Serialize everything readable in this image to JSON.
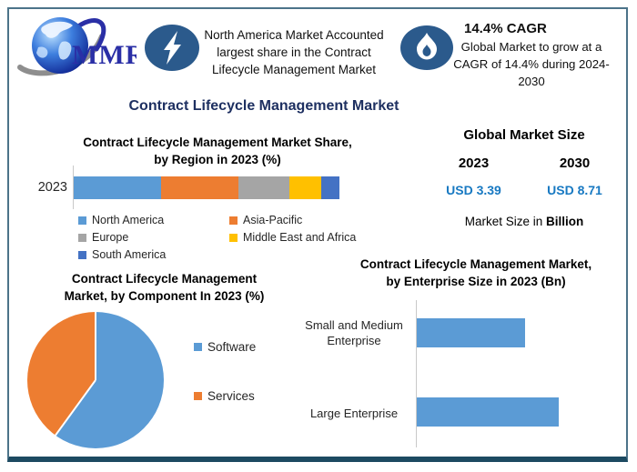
{
  "brand": {
    "logo_text": "MMR"
  },
  "header": {
    "highlight": {
      "lines": [
        "North America Market Accounted",
        "largest share in the Contract",
        "Lifecycle Management Market"
      ]
    },
    "cagr": {
      "title": "14.4% CAGR",
      "lines": [
        "Global Market to grow at a",
        "CAGR of 14.4% during 2024-",
        "2030"
      ]
    }
  },
  "page_title": "Contract Lifecycle Management Market",
  "market_size": {
    "title": "Global Market Size",
    "columns": [
      {
        "year": "2023",
        "value": "USD 3.39"
      },
      {
        "year": "2030",
        "value": "USD 8.71"
      }
    ],
    "note_regular": "Market Size in ",
    "note_bold": "Billion"
  },
  "colors": {
    "accent_blue": "#5B9BD5",
    "accent_orange": "#ED7D31",
    "accent_gray": "#A5A5A5",
    "accent_yellow": "#FFC000",
    "accent_dark_blue": "#4472C4",
    "badge_navy": "#2b5a8c",
    "title_navy": "#1e3061",
    "usd_blue": "#1879c2"
  },
  "chart_data": [
    {
      "id": "region_share",
      "type": "bar",
      "subtype": "stacked-horizontal",
      "title": "Contract Lifecycle Management Market Share, by Region in 2023 (%)",
      "title_lines": [
        "Contract Lifecycle Management Market Share,",
        "by Region in 2023 (%)"
      ],
      "categories": [
        "2023"
      ],
      "series": [
        {
          "name": "North America",
          "values": [
            33
          ],
          "color": "#5B9BD5"
        },
        {
          "name": "Asia-Pacific",
          "values": [
            29
          ],
          "color": "#ED7D31"
        },
        {
          "name": "Europe",
          "values": [
            19
          ],
          "color": "#A5A5A5"
        },
        {
          "name": "Middle East and Africa",
          "values": [
            12
          ],
          "color": "#FFC000"
        },
        {
          "name": "South America",
          "values": [
            7
          ],
          "color": "#4472C4"
        }
      ],
      "units": "%",
      "legend_position": "bottom",
      "grid": false
    },
    {
      "id": "component_split",
      "type": "pie",
      "title": "Contract Lifecycle Management Market, by Component In 2023 (%)",
      "title_lines": [
        "Contract Lifecycle Management",
        "Market, by Component In 2023 (%)"
      ],
      "labels": [
        "Software",
        "Services"
      ],
      "values": [
        60,
        40
      ],
      "colors": [
        "#5B9BD5",
        "#ED7D31"
      ],
      "units": "%",
      "legend_position": "right",
      "start_angle_deg": 0,
      "direction": "clockwise"
    },
    {
      "id": "enterprise_size",
      "type": "bar",
      "subtype": "horizontal",
      "title": "Contract Lifecycle Management Market, by Enterprise Size in 2023 (Bn)",
      "title_lines": [
        "Contract Lifecycle Management Market,",
        "by Enterprise Size in 2023 (Bn)"
      ],
      "categories": [
        "Small and Medium Enterprise",
        "Large Enterprise"
      ],
      "values": [
        0.76,
        1.0
      ],
      "value_basis": "relative bar lengths (axis values not labeled in image)",
      "color": "#5B9BD5",
      "units": "Bn",
      "grid": false
    }
  ]
}
